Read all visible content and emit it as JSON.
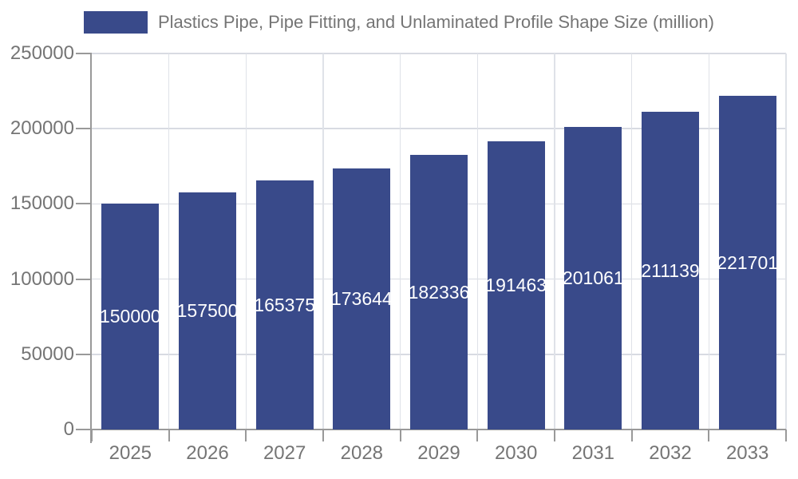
{
  "legend": {
    "label": "Plastics Pipe, Pipe Fitting, and Unlaminated Profile Shape Size (million)"
  },
  "chart_data": {
    "type": "bar",
    "title": "",
    "series_name": "Plastics Pipe, Pipe Fitting, and Unlaminated Profile Shape Size (million)",
    "categories": [
      "2025",
      "2026",
      "2027",
      "2028",
      "2029",
      "2030",
      "2031",
      "2032",
      "2033"
    ],
    "values": [
      150000,
      157500,
      165375,
      173644,
      182336,
      191463,
      201061,
      211139,
      221701
    ],
    "bar_labels": [
      "150000",
      "157500",
      "165375",
      "173644",
      "182336",
      "191463",
      "201061",
      "211139",
      "221701"
    ],
    "xlabel": "",
    "ylabel": "",
    "ylim": [
      0,
      250000
    ],
    "yticks": [
      0,
      50000,
      100000,
      150000,
      200000,
      250000
    ],
    "grid": true,
    "legend_position": "top-center",
    "bar_color": "#394A8A",
    "bar_label_color": "#FFFFFF",
    "axis_text_color": "#757575",
    "grid_color": "#D8DBE2",
    "axis_line_color": "#999999"
  }
}
